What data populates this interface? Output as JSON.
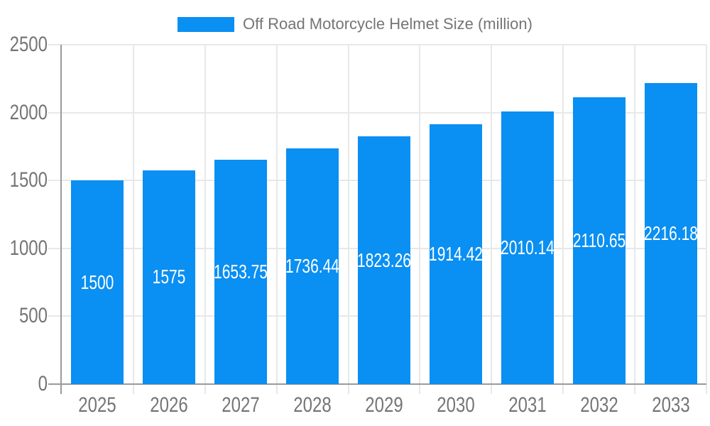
{
  "chart_data": {
    "type": "bar",
    "title": "Off Road Motorcycle Helmet Size (million)",
    "categories": [
      "2025",
      "2026",
      "2027",
      "2028",
      "2029",
      "2030",
      "2031",
      "2032",
      "2033"
    ],
    "values": [
      1500,
      1575,
      1653.75,
      1736.44,
      1823.26,
      1914.42,
      2010.14,
      2110.65,
      2216.18
    ],
    "value_labels": [
      "1500",
      "1575",
      "1653.75",
      "1736.44",
      "1823.26",
      "1914.42",
      "2010.14",
      "2110.65",
      "2216.18"
    ],
    "xlabel": "",
    "ylabel": "",
    "ylim": [
      0,
      2500
    ],
    "y_ticks": [
      0,
      500,
      1000,
      1500,
      2000,
      2500
    ],
    "grid": true,
    "legend_position": "top-center",
    "colors": {
      "bar": "#0a8ff2",
      "grid": "#e8e8e8",
      "axis": "#9a9a9a",
      "axis_text": "#757575",
      "value_text": "#ffffff",
      "background": "#ffffff"
    }
  }
}
